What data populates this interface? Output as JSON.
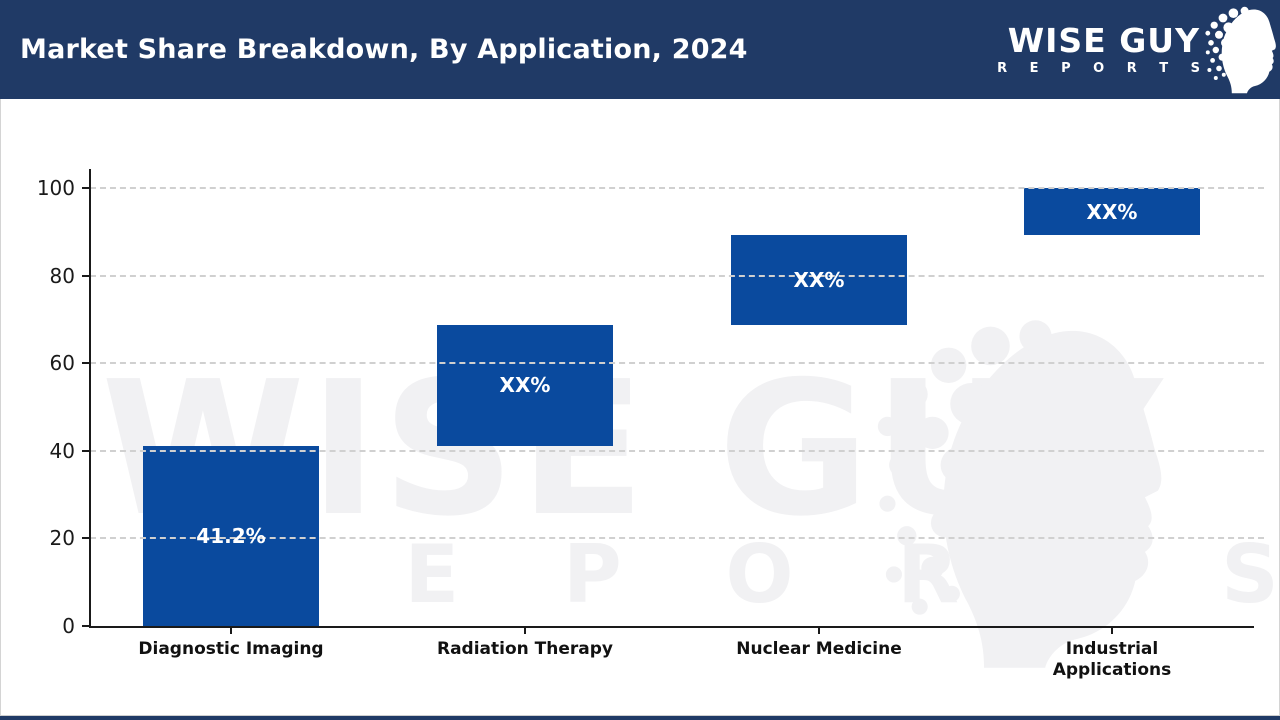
{
  "header": {
    "title": "Market Share Breakdown, By Application, 2024",
    "logo": {
      "line1": "WISE GUY",
      "line2": "R E P O R T S"
    }
  },
  "watermark": {
    "line1": "WISE GUY",
    "line2": "R E P O R T S"
  },
  "colors": {
    "header_bg": "#203a66",
    "footer_bg": "#203a66",
    "bar": "#0a4a9e",
    "bar_label": "#ffffff",
    "axis": "#1a1a1a",
    "grid": "#d0d0d0",
    "watermark": "#f1f1f3"
  },
  "chart_data": {
    "type": "bar",
    "subtype": "waterfall",
    "title": "Market Share Breakdown, By Application, 2024",
    "categories": [
      "Diagnostic Imaging",
      "Radiation Therapy",
      "Nuclear Medicine",
      "Industrial Applications"
    ],
    "tick_labels": [
      "Diagnostic Imaging",
      "Radiation Therapy",
      "Nuclear Medicine",
      "Industrial\nApplications"
    ],
    "segments": [
      {
        "category": "Diagnostic Imaging",
        "start": 0,
        "end": 41.2,
        "label": "41.2%"
      },
      {
        "category": "Radiation Therapy",
        "start": 41.2,
        "end": 68.8,
        "label": "XX%"
      },
      {
        "category": "Nuclear Medicine",
        "start": 68.8,
        "end": 89.2,
        "label": "XX%"
      },
      {
        "category": "Industrial Applications",
        "start": 89.2,
        "end": 100,
        "label": "XX%"
      }
    ],
    "yticks": [
      0,
      20,
      40,
      60,
      80,
      100
    ],
    "ylim": [
      0,
      104
    ],
    "grid": "horizontal-dashed",
    "legend": "none"
  }
}
